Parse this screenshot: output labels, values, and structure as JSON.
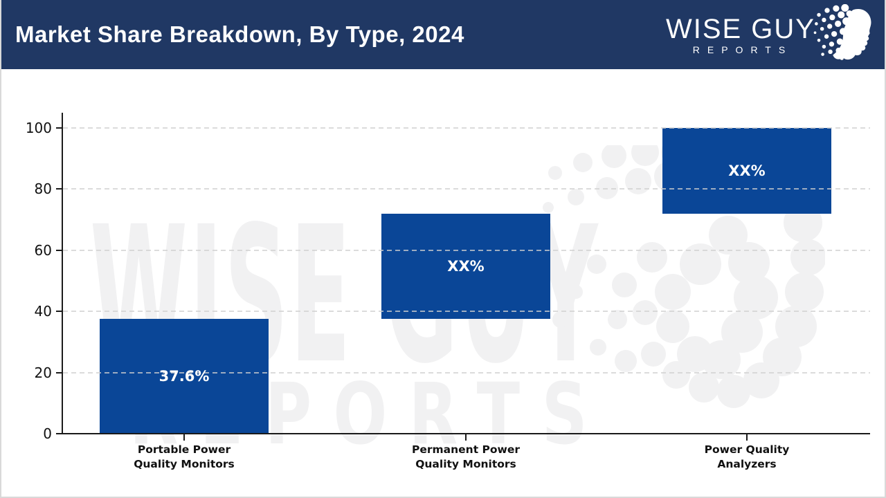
{
  "header": {
    "title": "Market Share Breakdown, By Type, 2024",
    "logo": {
      "line1": "WISE GUY",
      "line2": "REPORTS"
    }
  },
  "watermark": {
    "line1": "WISE GUY",
    "line2": "REPORTS"
  },
  "colors": {
    "header_bg": "#203864",
    "bar": "#0a4697",
    "grid": "#cfcfcf",
    "axis": "#1a1a1a",
    "watermark": "#f1f1f2",
    "bar_label_text": "#ffffff"
  },
  "chart_data": {
    "type": "bar",
    "variant": "floating-segment-waterfall",
    "title": "Market Share Breakdown, By Type, 2024",
    "categories": [
      [
        "Portable Power",
        "Quality Monitors"
      ],
      [
        "Permanent Power",
        "Quality Monitors"
      ],
      [
        "Power Quality",
        "Analyzers"
      ]
    ],
    "segments": [
      {
        "start": 0,
        "end": 37.6,
        "label": "37.6%"
      },
      {
        "start": 37.6,
        "end": 72,
        "label": "XX%"
      },
      {
        "start": 72,
        "end": 100,
        "label": "XX%"
      }
    ],
    "ylabel": "",
    "xlabel": "",
    "yticks": [
      0,
      20,
      40,
      60,
      80,
      100
    ],
    "ylim": [
      0,
      105
    ],
    "grid": "dashed-horizontal",
    "legend": "none",
    "bar_color": "#0a4697"
  }
}
